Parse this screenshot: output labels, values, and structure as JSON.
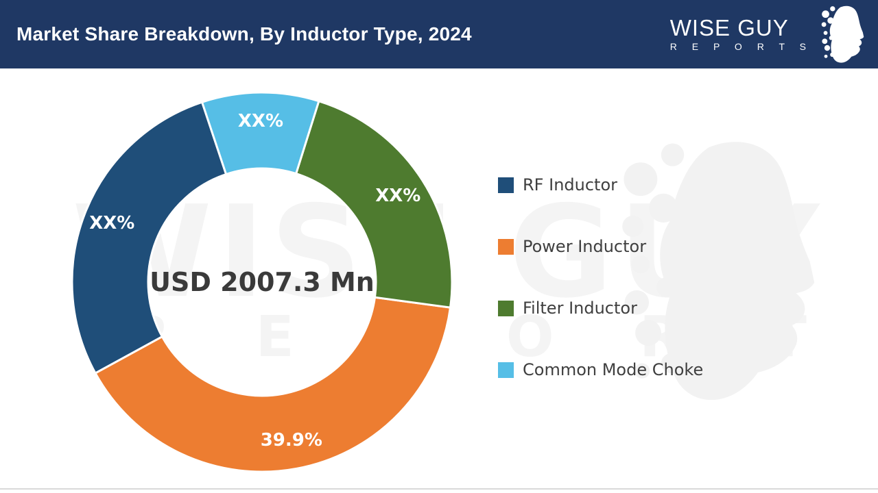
{
  "header": {
    "title": "Market Share Breakdown, By Inductor Type, 2024",
    "logo": {
      "line1": "WISE GUY",
      "line2": "R E P O R T S"
    }
  },
  "watermark": {
    "line1": "WISE GUY",
    "line2": "R E P O R T S"
  },
  "colors": {
    "header_bg": "#1F3864",
    "title_text": "#FFFFFF",
    "center_text": "#3A3A3A",
    "legend_text": "#3F3F3F",
    "watermark": "#F3F3F3",
    "slice_separator": "#FFFFFF",
    "bottom_rule": "#D9D9D9"
  },
  "chart_data": {
    "type": "pie",
    "subtype": "donut",
    "title": "Market Share Breakdown, By Inductor Type, 2024",
    "center_label": "USD 2007.3 Mn",
    "legend_position": "right",
    "outer_radius": 277,
    "inner_radius": 166,
    "label_radius": 235,
    "slices": [
      {
        "label": "RF Inductor",
        "value_label": "XX%",
        "approx_pct": 27.9,
        "color": "#1F4E79",
        "start_deg": 241.3,
        "end_deg": 341.6
      },
      {
        "label": "Power Inductor",
        "value_label": "39.9%",
        "approx_pct": 39.9,
        "color": "#ED7D31",
        "start_deg": 97.7,
        "end_deg": 241.3
      },
      {
        "label": "Filter Inductor",
        "value_label": "XX%",
        "approx_pct": 22.2,
        "color": "#4E7B2F",
        "start_deg": 17.4,
        "end_deg": 97.7
      },
      {
        "label": "Common Mode Choke",
        "value_label": "XX%",
        "approx_pct": 10.0,
        "color": "#56BEE6",
        "start_deg": -18.4,
        "end_deg": 17.4
      }
    ]
  }
}
